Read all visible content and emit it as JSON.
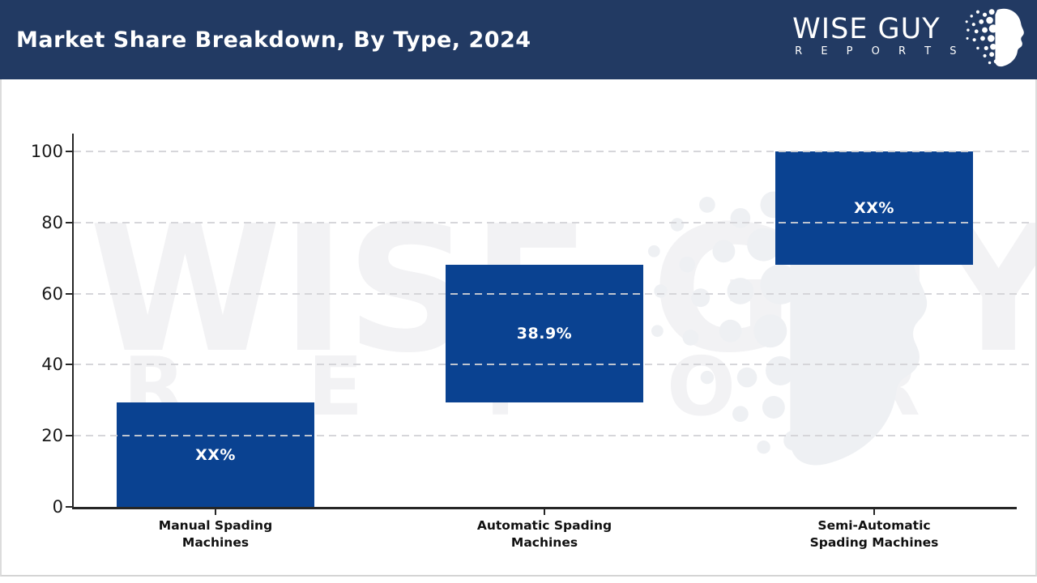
{
  "header": {
    "title": "Market Share Breakdown, By Type, 2024",
    "logo": {
      "name": "WISE GUY",
      "tagline": "R E P O R T S"
    }
  },
  "watermark": {
    "name": "WISE GUY",
    "tagline": "R E P O R T S"
  },
  "chart_data": {
    "type": "bar",
    "variant": "floating-segment-waterfall",
    "title": "Market Share Breakdown, By Type, 2024",
    "categories": [
      "Manual Spading\nMachines",
      "Automatic Spading\nMachines",
      "Semi-Automatic\nSpading Machines"
    ],
    "series": [
      {
        "name": "Market Share (%)",
        "bars": [
          {
            "category": "Manual Spading Machines",
            "start": 0,
            "end": 29.3,
            "label": "XX%"
          },
          {
            "category": "Automatic Spading Machines",
            "start": 29.3,
            "end": 68.2,
            "label": "38.9%"
          },
          {
            "category": "Semi-Automatic Spading Machines",
            "start": 68.2,
            "end": 100,
            "label": "XX%"
          }
        ]
      }
    ],
    "ylim": [
      0,
      100
    ],
    "yticks": [
      0,
      20,
      40,
      60,
      80,
      100
    ],
    "grid": {
      "horizontal": true,
      "style": "dashed"
    },
    "legend": "none",
    "colors": {
      "bar": "#0A4291",
      "bar_label": "#FFFFFF",
      "axis": "#262626",
      "grid": "#D2D2D6",
      "header_bg": "#223A63",
      "header_text": "#FFFFFF",
      "watermark": "#F2F2F4"
    }
  }
}
